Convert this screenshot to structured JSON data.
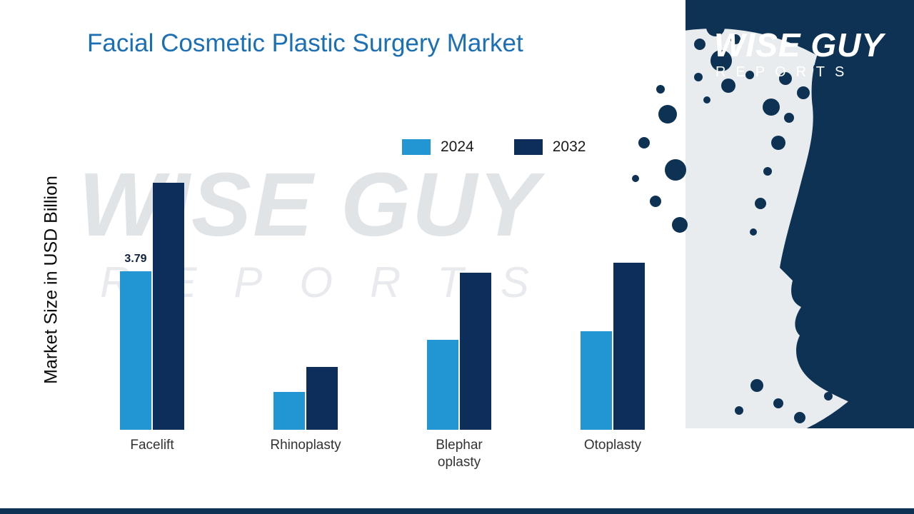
{
  "title": "Facial Cosmetic Plastic Surgery Market",
  "brand": {
    "line1": "WISE GUY",
    "line2": "REPORTS"
  },
  "watermark": {
    "line1": "WISE GUY",
    "line2": "REPORTS"
  },
  "colors": {
    "title_blue": "#1b6fb5",
    "bar_2024": "#2196d3",
    "bar_2032": "#0d2d5b",
    "panel_navy": "#0e3253",
    "panel_circle": "#e9ecee",
    "watermark_gray": "#c3cad1"
  },
  "chart_data": {
    "type": "bar",
    "title": "Facial Cosmetic Plastic Surgery Market",
    "xlabel": "",
    "ylabel": "Market Size in USD Billion",
    "unit": "USD Billion",
    "categories": [
      "Facelift",
      "Rhinoplasty",
      "Blepharoplasty",
      "Otoplasty"
    ],
    "category_labels_display": [
      "Facelift",
      "Rhinoplasty",
      "Blephar\noplasty",
      "Otoplasty"
    ],
    "series": [
      {
        "name": "2024",
        "color": "#2196d3",
        "values": [
          3.79,
          0.9,
          2.15,
          2.35
        ]
      },
      {
        "name": "2032",
        "color": "#0d2d5b",
        "values": [
          5.9,
          1.5,
          3.75,
          4.0
        ]
      }
    ],
    "annotations": [
      {
        "category_index": 0,
        "series_index": 0,
        "text": "3.79"
      }
    ],
    "ylim": [
      0,
      6.5
    ],
    "grid": false,
    "legend_position": "top"
  }
}
